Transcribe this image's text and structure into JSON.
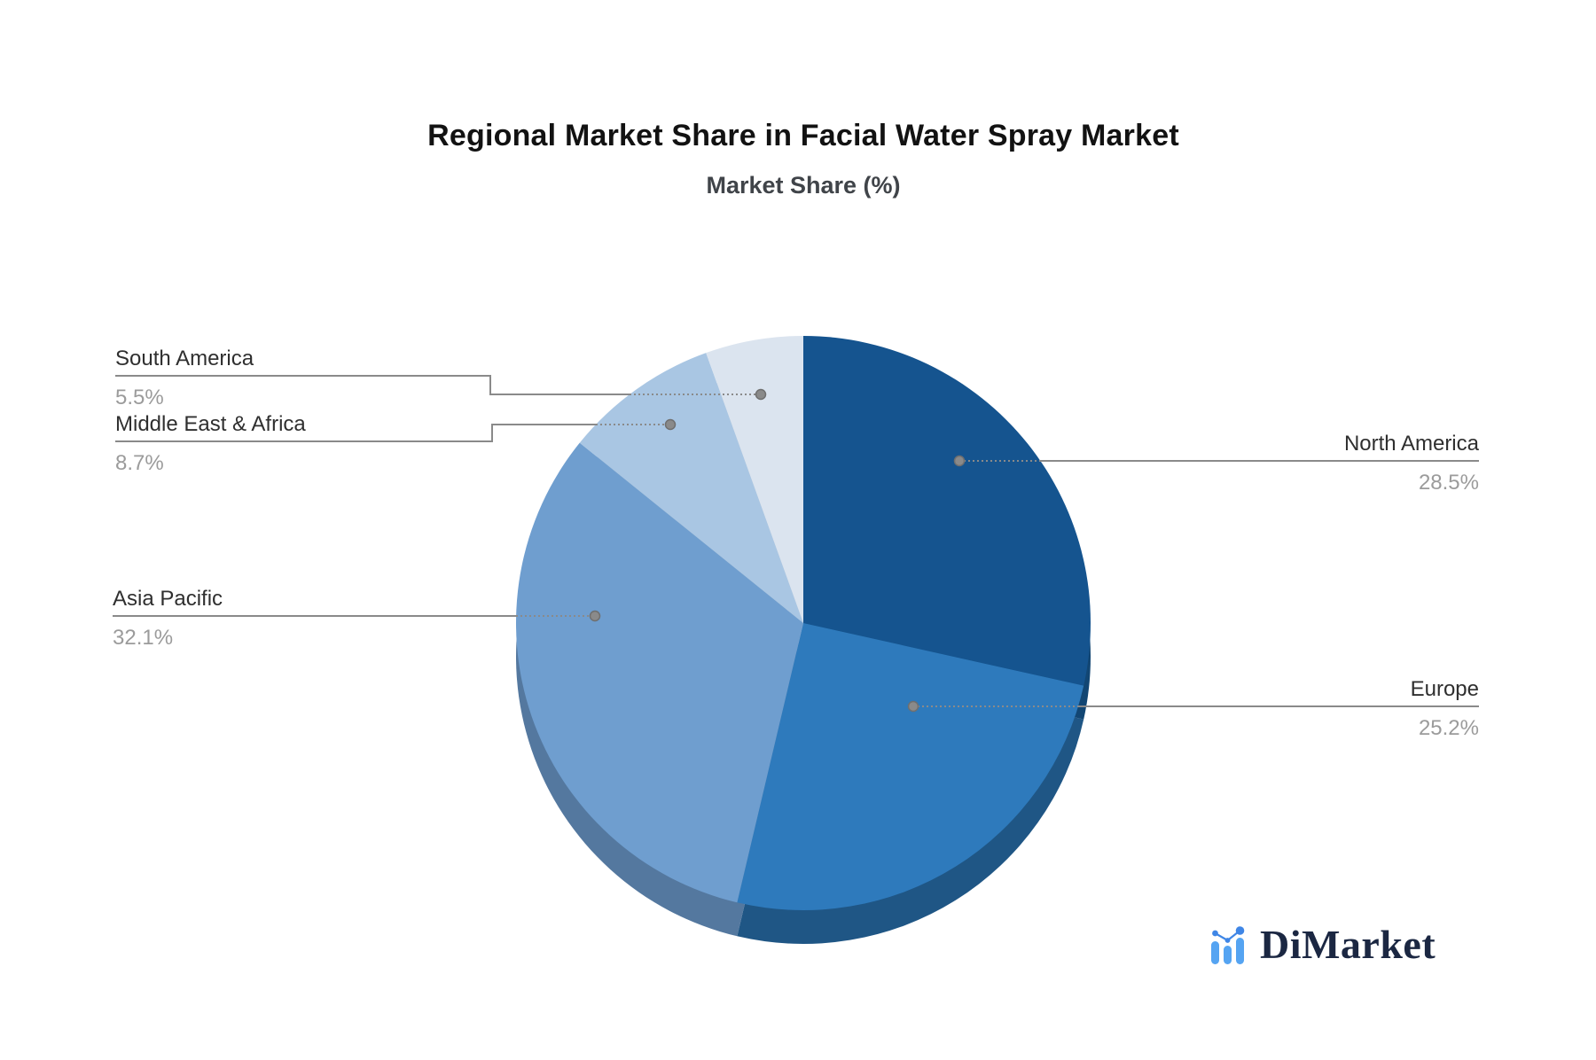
{
  "header": {
    "title": "Regional Market Share in Facial Water Spray Market",
    "subtitle": "Market Share (%)"
  },
  "chart_data": {
    "type": "pie",
    "title": "Regional Market Share in Facial Water Spray Market",
    "subtitle": "Market Share (%)",
    "unit": "%",
    "legend_position": "none",
    "labels_style": "outside-leader-lines",
    "start_angle_deg": 0,
    "direction": "clockwise",
    "pseudo_3d": true,
    "slices": [
      {
        "label": "North America",
        "value": 28.5,
        "display": "28.5%",
        "color": "#15548f",
        "side_color": "#124673",
        "label_side": "right"
      },
      {
        "label": "Europe",
        "value": 25.2,
        "display": "25.2%",
        "color": "#2e7abc",
        "side_color": "#1f5685",
        "label_side": "right"
      },
      {
        "label": "Asia Pacific",
        "value": 32.1,
        "display": "32.1%",
        "color": "#6f9ecf",
        "side_color": "#54789f",
        "label_side": "left"
      },
      {
        "label": "Middle East & Africa",
        "value": 8.7,
        "display": "8.7%",
        "color": "#a9c6e3",
        "side_color": "#87a2bf",
        "label_side": "left"
      },
      {
        "label": "South America",
        "value": 5.5,
        "display": "5.5%",
        "color": "#dbe4ef",
        "side_color": "#b5c0ce",
        "label_side": "left"
      }
    ]
  },
  "colors": {
    "title_text": "#121212",
    "subtitle_text": "#404449",
    "label_text": "#2f2f2f",
    "percent_text": "#9b9b9b",
    "leader_line": "#8a8a8a",
    "leader_dot": "#8a8a8a",
    "background": "#ffffff"
  },
  "branding": {
    "logo_text": "DiMarket",
    "logo_icon": "bar-line-chart-icon",
    "text_color": "#1b2742",
    "bar_color": "#55a4f2",
    "dot_color": "#3f86e6"
  }
}
